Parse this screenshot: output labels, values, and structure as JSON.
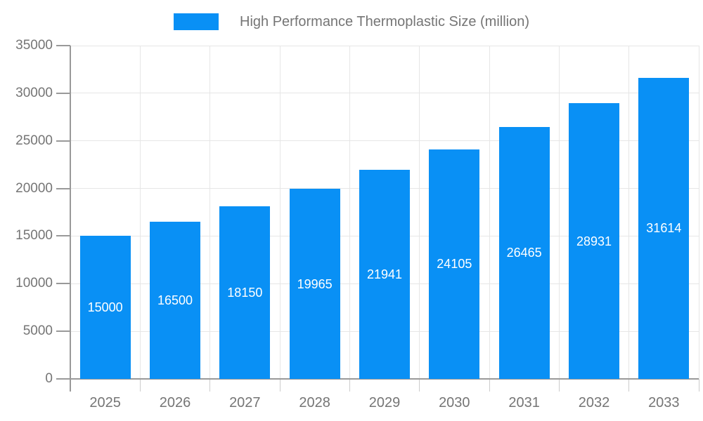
{
  "chart_data": {
    "type": "bar",
    "title": "High Performance Thermoplastic Size (million)",
    "legend": {
      "position": "top",
      "label": "High Performance Thermoplastic Size (million)"
    },
    "categories": [
      "2025",
      "2026",
      "2027",
      "2028",
      "2029",
      "2030",
      "2031",
      "2032",
      "2033"
    ],
    "series": [
      {
        "name": "High Performance Thermoplastic Size (million)",
        "values": [
          15000,
          16500,
          18150,
          19965,
          21941,
          24105,
          26465,
          28931,
          31614
        ]
      }
    ],
    "value_labels": [
      "15000",
      "16500",
      "18150",
      "19965",
      "21941",
      "24105",
      "26465",
      "28931",
      "31614"
    ],
    "xlabel": "",
    "ylabel": "",
    "ylim": [
      0,
      35000
    ],
    "ytick_step": 5000,
    "ytick_labels": [
      "0",
      "5000",
      "10000",
      "15000",
      "20000",
      "25000",
      "30000",
      "35000"
    ],
    "grid": true,
    "colors": {
      "bar": "#0990f5",
      "bar_label": "#ffffff",
      "gridline": "#e6e6e6",
      "axis": "#999999",
      "tick": "#cccccc",
      "text": "#757575",
      "background": "#ffffff"
    }
  }
}
